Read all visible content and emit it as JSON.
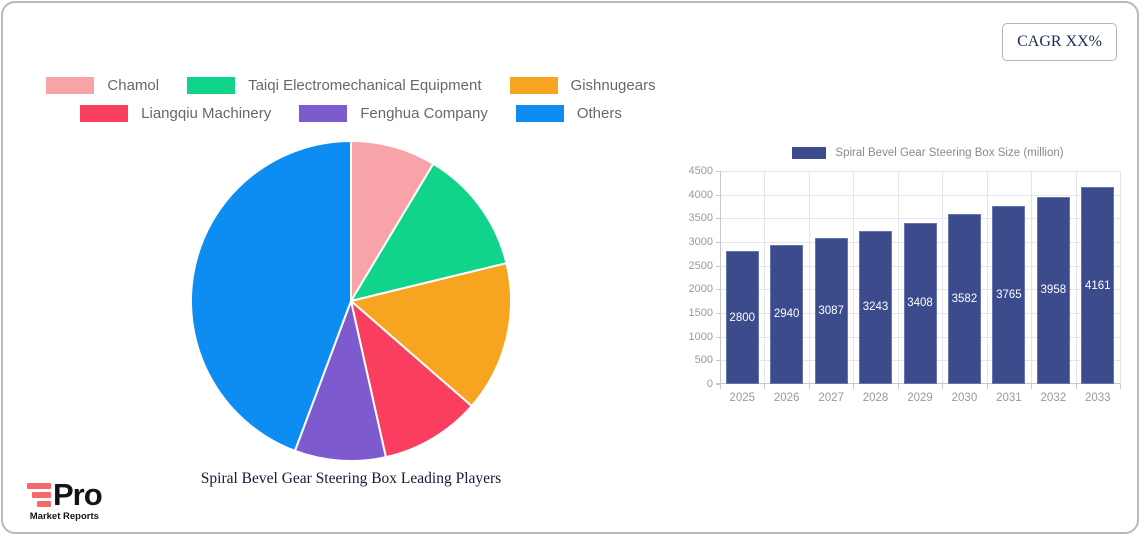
{
  "cagr": {
    "label": "CAGR XX%"
  },
  "logo": {
    "brand": "Pro",
    "tagline": "Market Reports",
    "accent_color": "#f5696b"
  },
  "chart_data": [
    {
      "type": "pie",
      "title": "Spiral Bevel Gear Steering Box Leading Players",
      "legend_position": "top",
      "start_angle_deg": 0,
      "direction": "clockwise",
      "slice_border_color": "#ffffff",
      "segments": [
        {
          "label": "Chamol",
          "value": 8.6,
          "color": "#f8a3a8"
        },
        {
          "label": "Taiqi Electromechanical Equipment",
          "value": 12.6,
          "color": "#10d489"
        },
        {
          "label": "Gishnugears",
          "value": 15.2,
          "color": "#f7a420"
        },
        {
          "label": "Liangqiu Machinery",
          "value": 10.1,
          "color": "#fa3e5f"
        },
        {
          "label": "Fenghua Company",
          "value": 9.2,
          "color": "#7d5bce"
        },
        {
          "label": "Others",
          "value": 44.3,
          "color": "#0d8df2"
        }
      ]
    },
    {
      "type": "bar",
      "legend_label": "Spiral Bevel Gear Steering Box Size (million)",
      "categories": [
        "2025",
        "2026",
        "2027",
        "2028",
        "2029",
        "2030",
        "2031",
        "2032",
        "2033"
      ],
      "values": [
        2800,
        2940,
        3087,
        3243,
        3408,
        3582,
        3765,
        3958,
        4161
      ],
      "bar_color": "#3b4b8c",
      "value_label_color": "#ffffff",
      "xlabel": "",
      "ylabel": "",
      "ylim": [
        0,
        4500
      ],
      "ytick_step": 500,
      "grid": true,
      "legend_position": "top"
    }
  ]
}
